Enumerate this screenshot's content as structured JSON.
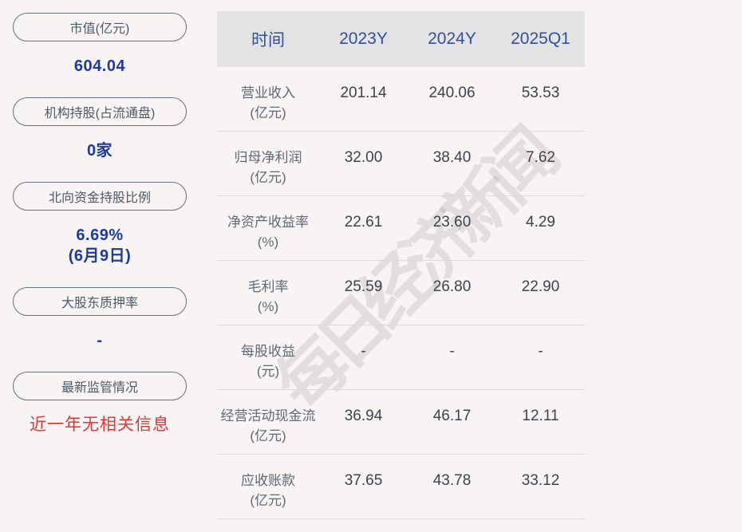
{
  "colors": {
    "page_bg": "#f8f4f4",
    "table_header_bg": "#e4e3e4",
    "table_header_text": "#30509f",
    "accent_blue": "#1e3a9c",
    "alert_red": "#e23634",
    "pill_border": "#67727f",
    "pill_text": "#4d5966",
    "row_label_text": "#5f6874",
    "row_value_text": "#3d434b",
    "divider": "#dcd8d9"
  },
  "watermark": {
    "text": "每日经济新闻"
  },
  "sidebar": {
    "items": [
      {
        "label": "市值(亿元)",
        "value": "604.04"
      },
      {
        "label": "机构持股(占流通盘)",
        "value": "0家"
      },
      {
        "label": "北向资金持股比例",
        "value": "6.69%",
        "value_line2": "(6月9日)"
      },
      {
        "label": "大股东质押率",
        "value": "-"
      },
      {
        "label": "最新监管情况",
        "value": "近一年无相关信息"
      }
    ]
  },
  "table": {
    "header": {
      "time_label": "时间",
      "columns": [
        "2023Y",
        "2024Y",
        "2025Q1"
      ]
    },
    "rows": [
      {
        "name": "营业收入",
        "unit": "(亿元)",
        "values": [
          "201.14",
          "240.06",
          "53.53"
        ]
      },
      {
        "name": "归母净利润",
        "unit": "(亿元)",
        "values": [
          "32.00",
          "38.40",
          "7.62"
        ]
      },
      {
        "name": "净资产收益率",
        "unit": "(%)",
        "values": [
          "22.61",
          "23.60",
          "4.29"
        ]
      },
      {
        "name": "毛利率",
        "unit": "(%)",
        "values": [
          "25.59",
          "26.80",
          "22.90"
        ]
      },
      {
        "name": "每股收益",
        "unit": "(元)",
        "values": [
          "-",
          "-",
          "-"
        ]
      },
      {
        "name": "经营活动现金流",
        "unit": "(亿元)",
        "values": [
          "36.94",
          "46.17",
          "12.11"
        ]
      },
      {
        "name": "应收账款",
        "unit": "(亿元)",
        "values": [
          "37.65",
          "43.78",
          "33.12"
        ]
      }
    ]
  }
}
